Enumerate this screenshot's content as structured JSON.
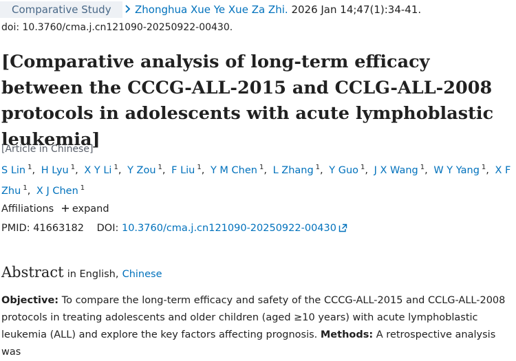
{
  "header": {
    "badge": "Comparative Study",
    "journal": "Zhonghua Xue Ye Xue Za Zhi.",
    "citation": "2026 Jan 14;47(1):34-41.",
    "doi": "doi: 10.3760/cma.j.cn121090-20250922-00430."
  },
  "title": "[Comparative analysis of long-term efficacy between the CCCG-ALL-2015 and CCLG-ALL-2008 protocols in adolescents with acute lymphoblastic leukemia]",
  "language": "[Article in Chinese]",
  "authors": {
    "separator": ",",
    "list": [
      {
        "name": "S Lin",
        "aff": "1"
      },
      {
        "name": "H Lyu",
        "aff": "1"
      },
      {
        "name": "X Y Li",
        "aff": "1"
      },
      {
        "name": "Y Zou",
        "aff": "1"
      },
      {
        "name": "F Liu",
        "aff": "1"
      },
      {
        "name": "Y M Chen",
        "aff": "1"
      },
      {
        "name": "L Zhang",
        "aff": "1"
      },
      {
        "name": "Y Guo",
        "aff": "1"
      },
      {
        "name": "J X Wang",
        "aff": "1"
      },
      {
        "name": "W Y Yang",
        "aff": "1"
      },
      {
        "name": "X F Zhu",
        "aff": "1"
      },
      {
        "name": "X J Chen",
        "aff": "1"
      }
    ]
  },
  "affiliations": {
    "label": "Affiliations",
    "toggle": "expand"
  },
  "identifiers": {
    "pmid_label": "PMID:",
    "pmid": "41663182",
    "doi_label": "DOI:",
    "doi": "10.3760/cma.j.cn121090-20250922-00430"
  },
  "abstract": {
    "heading": "Abstract",
    "in": "in English,",
    "alt_language": "Chinese",
    "sections": [
      {
        "label": "Objective:",
        "text": "To compare the long-term efficacy and safety of the CCCG-ALL-2015 and CCLG-ALL-2008 protocols in treating adolescents and older children (aged ≥10 years) with acute lymphoblastic leukemia (ALL) and explore the key factors affecting prognosis."
      },
      {
        "label": "Methods:",
        "text": "A retrospective analysis was"
      }
    ]
  }
}
